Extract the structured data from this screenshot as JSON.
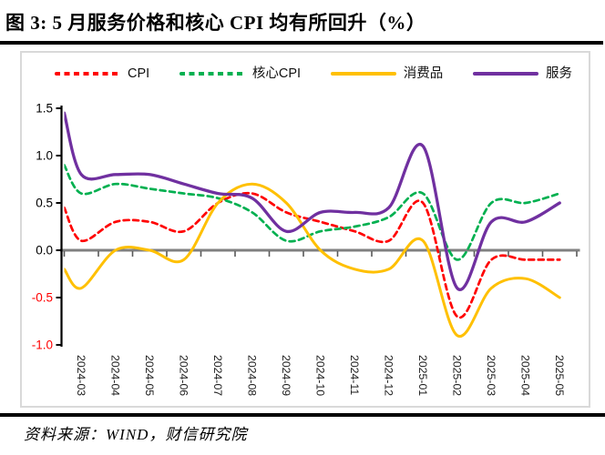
{
  "title": "图 3: 5 月服务价格和核心 CPI 均有所回升（%）",
  "source": "资料来源：WIND，财信研究院",
  "chart_data": {
    "type": "line",
    "title": "图 3: 5 月服务价格和核心 CPI 均有所回升（%）",
    "categories": [
      "2024-03",
      "2024-04",
      "2024-05",
      "2024-06",
      "2024-07",
      "2024-08",
      "2024-09",
      "2024-10",
      "2024-11",
      "2024-12",
      "2025-01",
      "2025-02",
      "2025-03",
      "2025-04",
      "2025-05"
    ],
    "series": [
      {
        "name": "CPI",
        "color": "#ff0000",
        "dashed": true,
        "left_edge_value": 0.45,
        "values": [
          0.1,
          0.3,
          0.3,
          0.2,
          0.5,
          0.6,
          0.4,
          0.3,
          0.2,
          0.1,
          0.5,
          -0.7,
          -0.1,
          -0.1,
          -0.1
        ]
      },
      {
        "name": "核心CPI",
        "color": "#00b050",
        "dashed": true,
        "left_edge_value": 0.9,
        "values": [
          0.6,
          0.7,
          0.65,
          0.6,
          0.55,
          0.4,
          0.1,
          0.2,
          0.25,
          0.35,
          0.6,
          -0.1,
          0.5,
          0.5,
          0.6
        ]
      },
      {
        "name": "消费品",
        "color": "#ffc000",
        "dashed": false,
        "left_edge_value": -0.2,
        "values": [
          -0.4,
          0.0,
          0.0,
          -0.1,
          0.5,
          0.7,
          0.5,
          0.0,
          -0.2,
          -0.2,
          0.1,
          -0.9,
          -0.4,
          -0.3,
          -0.5
        ]
      },
      {
        "name": "服务",
        "color": "#7030a0",
        "dashed": false,
        "left_edge_value": 1.45,
        "values": [
          0.8,
          0.8,
          0.8,
          0.7,
          0.6,
          0.55,
          0.2,
          0.4,
          0.4,
          0.45,
          1.1,
          -0.4,
          0.3,
          0.3,
          0.5
        ]
      }
    ],
    "ylim": [
      -1.0,
      1.5
    ],
    "yticks": [
      1.5,
      1.0,
      0.5,
      0.0,
      -0.5,
      -1.0
    ],
    "ytick_color_positive": "#000000",
    "ytick_color_negative": "#ff0000",
    "zero_line_color": "#808080",
    "axis_color": "#000000",
    "x_tick_color": "#595959",
    "grid": false,
    "legend_position": "top"
  }
}
